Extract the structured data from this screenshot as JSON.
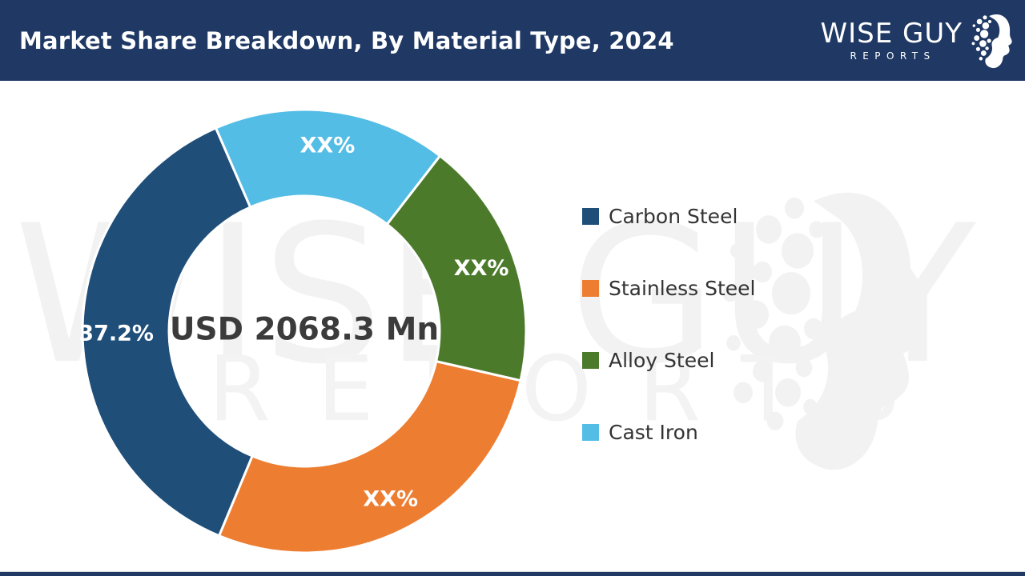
{
  "header": {
    "title": "Market Share Breakdown, By Material Type, 2024",
    "logo": {
      "line1": "WISE GUY",
      "line2": "REPORTS"
    }
  },
  "chart_data": {
    "type": "pie",
    "subtype": "donut",
    "title": "Market Share Breakdown, By Material Type, 2024",
    "center_label": "USD 2068.3 Mn",
    "start_angle_deg": 113.5,
    "direction": "counterclockwise",
    "inner_radius_ratio": 0.61,
    "legend_position": "right",
    "series": [
      {
        "name": "Carbon Steel",
        "value": 37.2,
        "display_label": "37.2%",
        "color": "#1F4E79"
      },
      {
        "name": "Stainless Steel",
        "value": 27.7,
        "display_label": "XX%",
        "color": "#ED7D31"
      },
      {
        "name": "Alloy Steel",
        "value": 18.1,
        "display_label": "XX%",
        "color": "#4C7A2B"
      },
      {
        "name": "Cast Iron",
        "value": 17.0,
        "display_label": "XX%",
        "color": "#53BDE6"
      }
    ]
  },
  "watermark": {
    "line1": "WISE GUY",
    "line2": "REPORTS"
  },
  "colors": {
    "header_bar": "#1F3864",
    "footer_bar": "#1F3864",
    "center_text": "#3B3B3B",
    "legend_text": "#333333",
    "percent_label": "#FFFFFF",
    "watermark": "#F2F2F2"
  }
}
